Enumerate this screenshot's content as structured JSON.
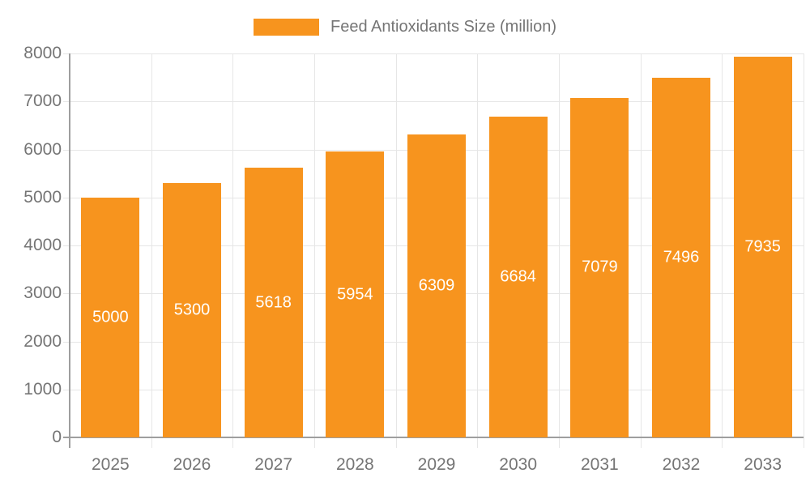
{
  "legend": {
    "label": "Feed Antioxidants Size (million)"
  },
  "chart_data": {
    "type": "bar",
    "title": "Feed Antioxidants Size (million)",
    "series_name": "Feed Antioxidants Size (million)",
    "categories": [
      "2025",
      "2026",
      "2027",
      "2028",
      "2029",
      "2030",
      "2031",
      "2032",
      "2033"
    ],
    "values": [
      5000,
      5300,
      5618,
      5954,
      6309,
      6684,
      7079,
      7496,
      7935
    ],
    "value_labels": [
      "5000",
      "5300",
      "5618",
      "5954",
      "6309",
      "6684",
      "7079",
      "7496",
      "7935"
    ],
    "xlabel": "",
    "ylabel": "",
    "ylim": [
      0,
      8000
    ],
    "ytick_step": 1000,
    "ytick_labels": [
      "0",
      "1000",
      "2000",
      "3000",
      "4000",
      "5000",
      "6000",
      "7000",
      "8000"
    ],
    "grid": true,
    "legend_position": "top",
    "value_label_position": "inside-center"
  },
  "colors": {
    "bar": "#F7941E",
    "grid": "#E6E6E6",
    "axis": "#9E9E9E",
    "tick_text": "#757575",
    "value_text": "#FFFFFF",
    "background": "#FFFFFF"
  }
}
